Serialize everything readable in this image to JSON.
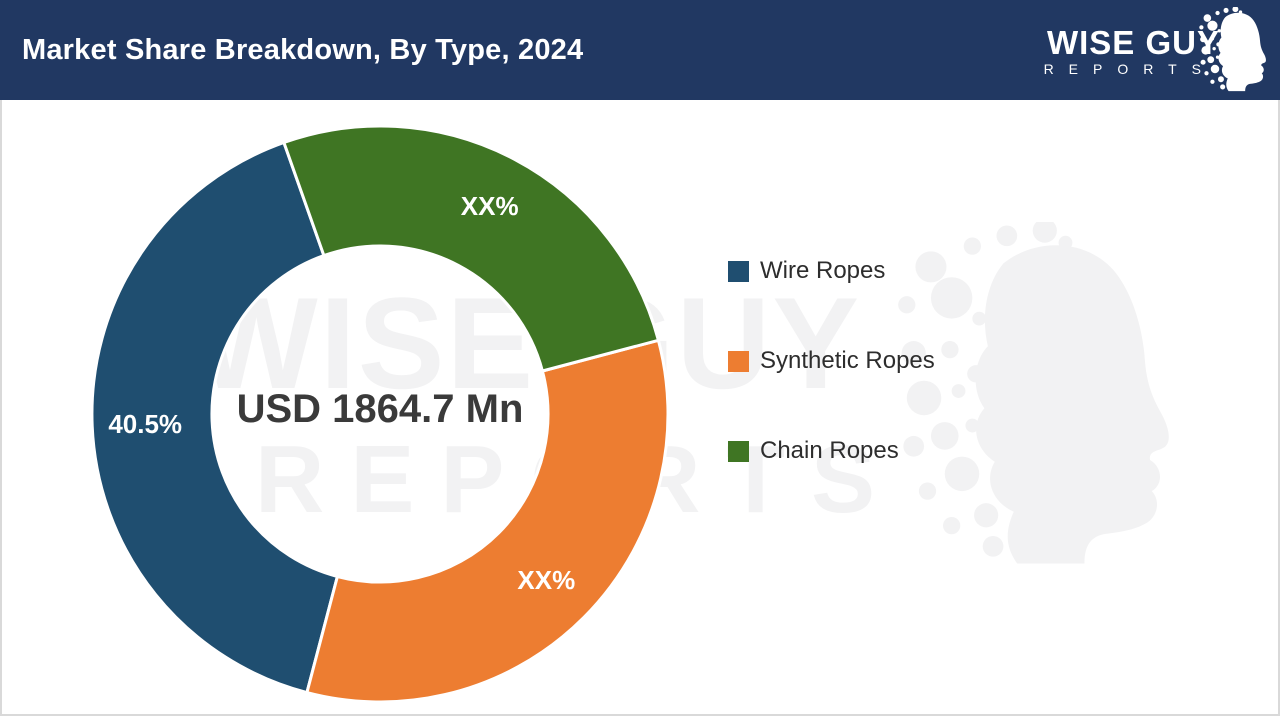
{
  "header": {
    "title": "Market Share Breakdown, By Type, 2024",
    "background_color": "#213862",
    "logo": {
      "line1": "WISE GUY",
      "line2": "REPORTS"
    }
  },
  "chart_data": {
    "type": "pie",
    "subtype": "donut",
    "title": "Market Share Breakdown, By Type, 2024",
    "center_label": "USD 1864.7 Mn",
    "start_angle_deg": 109.5,
    "direction": "counterclockwise",
    "legend_position": "right",
    "segments": [
      {
        "name": "Wire Ropes",
        "color": "#1f4e70",
        "displayed_label": "40.5%",
        "value_pct": 40.5
      },
      {
        "name": "Synthetic Ropes",
        "color": "#ed7d31",
        "displayed_label": "XX%",
        "value_pct": 33.2
      },
      {
        "name": "Chain Ropes",
        "color": "#3f7523",
        "displayed_label": "XX%",
        "value_pct": 26.3
      }
    ]
  },
  "watermark": {
    "line1": "WISE GUY",
    "line2": "REPORTS"
  }
}
